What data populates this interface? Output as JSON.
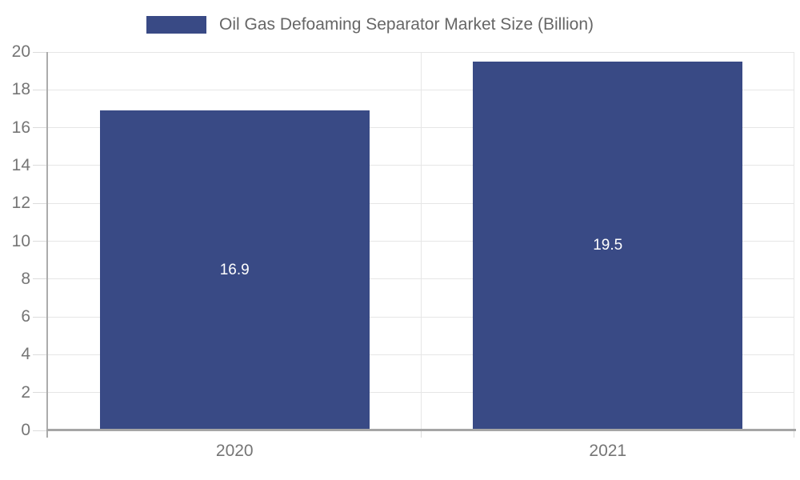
{
  "legend": {
    "label": "Oil Gas Defoaming Separator Market Size (Billion)",
    "swatch_color": "#394A85"
  },
  "chart_data": {
    "type": "bar",
    "title": "Oil Gas Defoaming Separator Market Size (Billion)",
    "categories": [
      "2020",
      "2021"
    ],
    "series": [
      {
        "name": "Oil Gas Defoaming Separator Market Size (Billion)",
        "values": [
          16.9,
          19.5
        ]
      }
    ],
    "data_labels": [
      "16.9",
      "19.5"
    ],
    "xlabel": "",
    "ylabel": "",
    "ylim": [
      0,
      20
    ],
    "ytick_interval": 2,
    "yticks": [
      "0",
      "2",
      "4",
      "6",
      "8",
      "10",
      "12",
      "14",
      "16",
      "18",
      "20"
    ],
    "grid": true,
    "legend_position": "top-center",
    "bar_width_fraction": 0.722,
    "colors": {
      "bar": "#394A85",
      "value_label": "#FFFFFF",
      "axis_line": "#ACACAC",
      "gridline": "#E6E6E6",
      "tick_label": "#757575",
      "legend_text": "#666666"
    }
  }
}
